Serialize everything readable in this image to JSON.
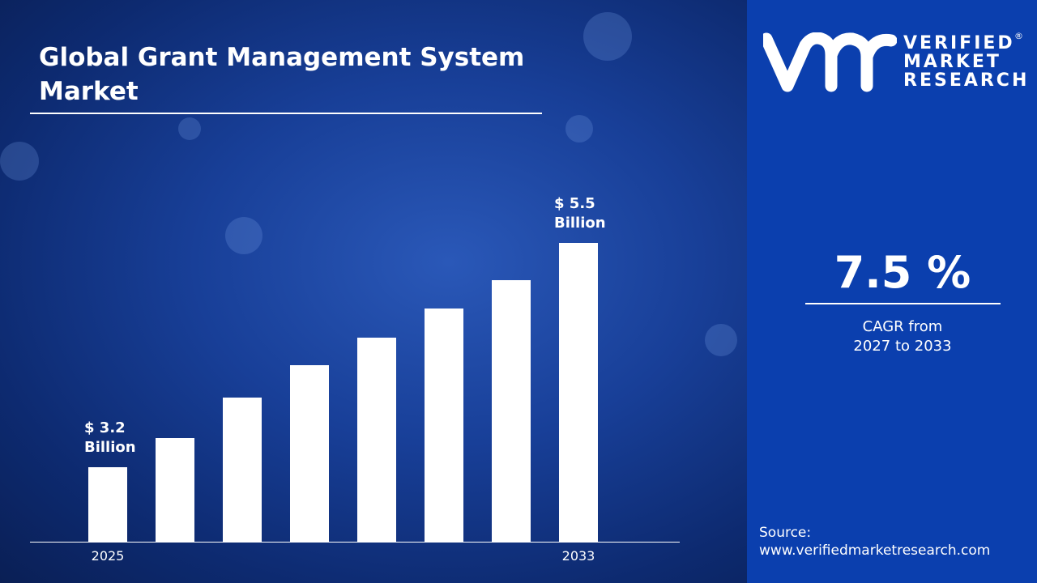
{
  "title": "Global Grant Management System Market",
  "brand": {
    "line1": "VERIFIED",
    "line2": "MARKET",
    "line3": "RESEARCH",
    "registered": "®"
  },
  "cagr": {
    "value": "7.5 %",
    "label_line1": "CAGR from",
    "label_line2": "2027 to 2033"
  },
  "source": {
    "label": "Source:",
    "url": "www.verifiedmarketresearch.com"
  },
  "colors": {
    "background": "#183f98",
    "panel": "#0b3fae",
    "bar": "#ffffff"
  },
  "chart_data": {
    "type": "bar",
    "categories": [
      "2025",
      "",
      "",
      "",
      "",
      "",
      "",
      "2033"
    ],
    "values": [
      3.2,
      3.5,
      3.91,
      4.25,
      4.53,
      4.83,
      5.12,
      5.5
    ],
    "data_labels": [
      {
        "index": 0,
        "line1": "$ 3.2",
        "line2": "Billion"
      },
      {
        "index": 7,
        "line1": "$ 5.5",
        "line2": "Billion"
      }
    ],
    "unit": "USD Billion",
    "grid": false,
    "legend": "none"
  }
}
